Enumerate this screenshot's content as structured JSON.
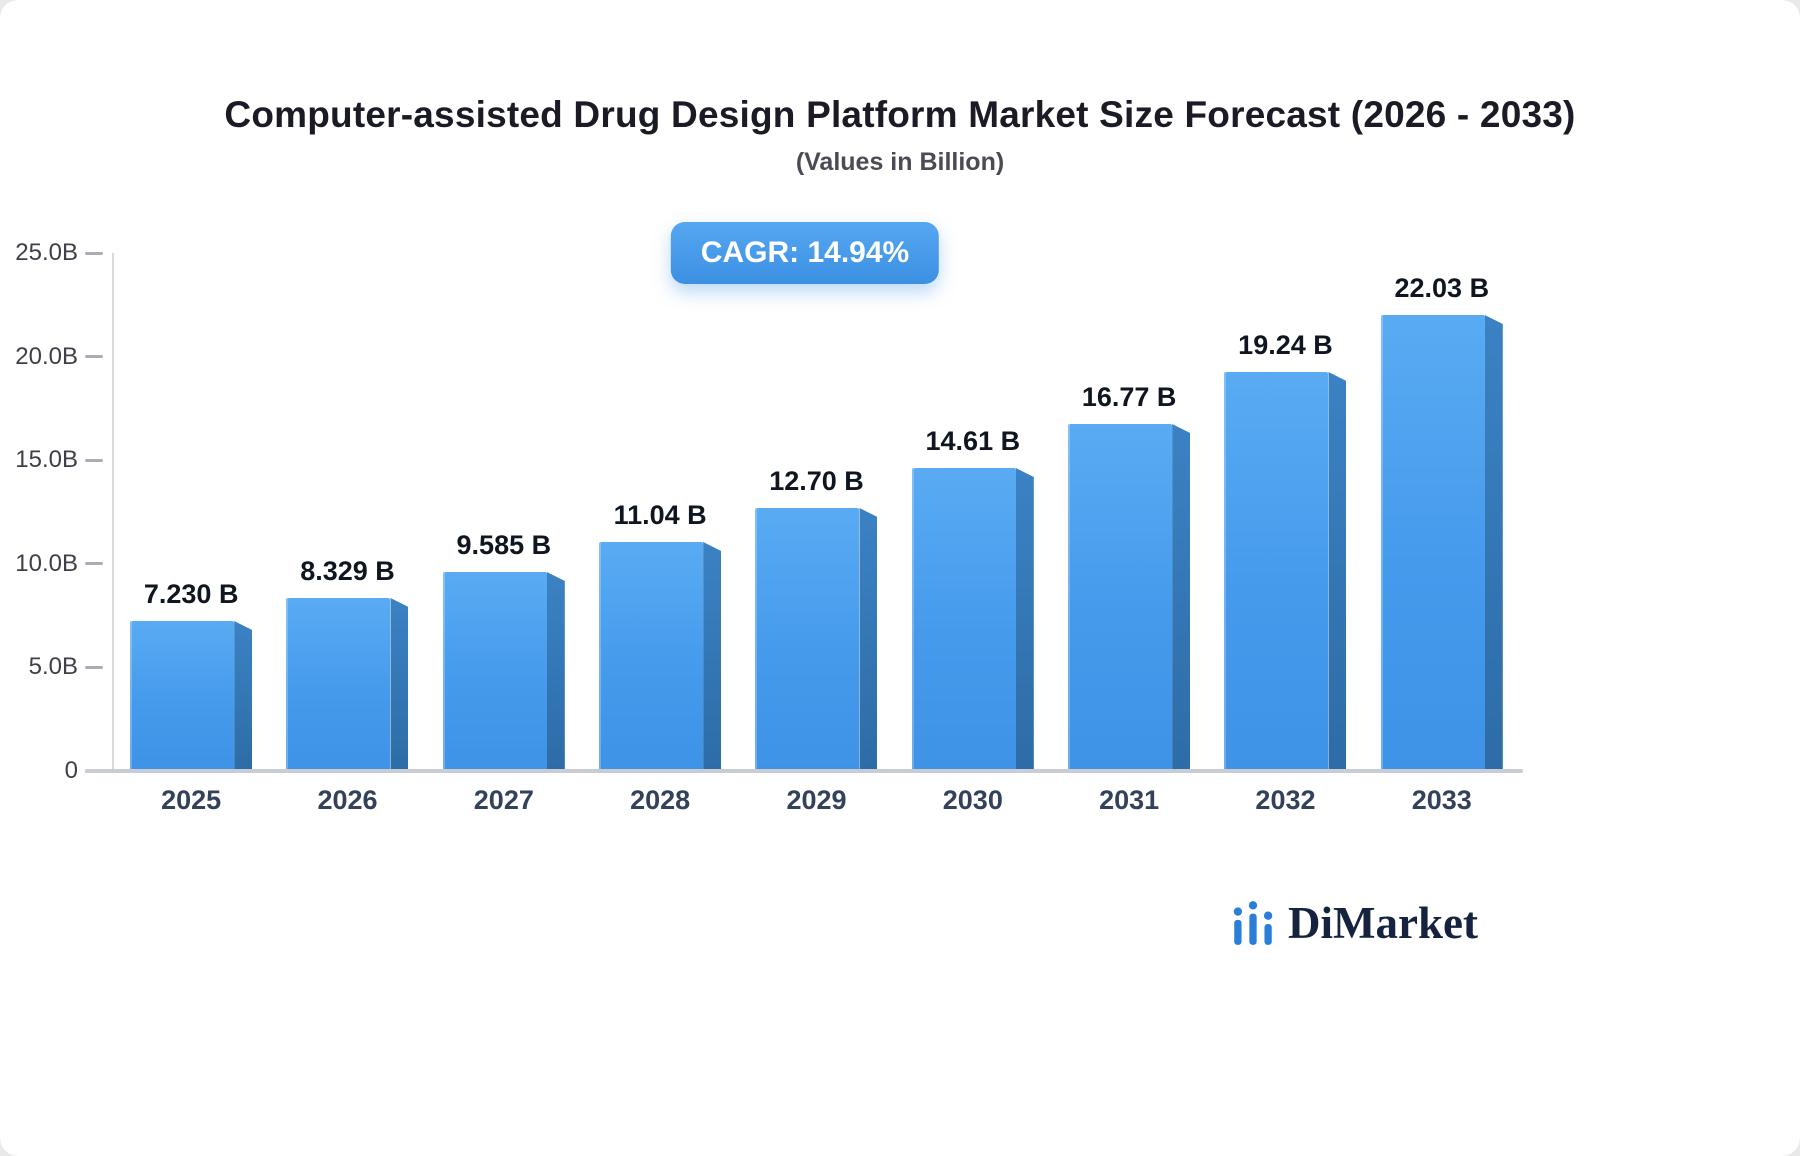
{
  "chart_data": {
    "type": "bar",
    "title": "Computer-assisted Drug Design Platform Market Size Forecast (2026 - 2033)",
    "subtitle": "(Values in Billion)",
    "annotation": "CAGR: 14.94%",
    "categories": [
      "2025",
      "2026",
      "2027",
      "2028",
      "2029",
      "2030",
      "2031",
      "2032",
      "2033"
    ],
    "values": [
      7.23,
      8.329,
      9.585,
      11.04,
      12.7,
      14.61,
      16.77,
      19.24,
      22.03
    ],
    "labels": [
      "7.230 B",
      "8.329 B",
      "9.585 B",
      "11.04 B",
      "12.70 B",
      "14.61 B",
      "16.77 B",
      "19.24 B",
      "22.03 B"
    ],
    "xlabel": "",
    "ylabel": "",
    "ylim": [
      0,
      25
    ],
    "ytick_labels": [
      "0",
      "5.0B",
      "10.0B",
      "15.0B",
      "20.0B",
      "25.0B"
    ],
    "grid": false,
    "legend": "none",
    "bar_color": "#459AEC",
    "bar_side_color": "#2D6CA6",
    "badge_color": "#3C90E2"
  },
  "footer": {
    "brand": "DiMarket",
    "logo_icon": "bar-chart-dots-icon",
    "brand_color": "#15233F",
    "icon_color": "#2B7ED8"
  }
}
